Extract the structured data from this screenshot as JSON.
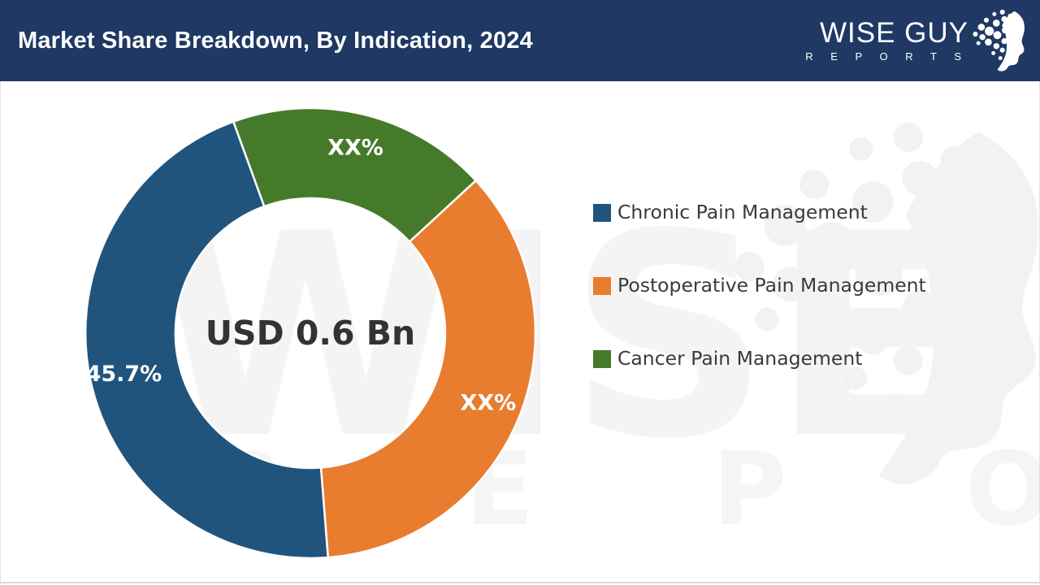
{
  "header": {
    "title": "Market Share Breakdown, By Indication, 2024",
    "background_color": "#1f3864",
    "logo": {
      "line1": "WISE GUY",
      "line2": "R E P O R T S"
    }
  },
  "chart_data": {
    "type": "pie",
    "subtype": "donut",
    "title": "Market Share Breakdown, By Indication, 2024",
    "categories": [
      "Chronic Pain Management",
      "Postoperative Pain Management",
      "Cancer Pain Management"
    ],
    "values": [
      45.7,
      35.6,
      18.7
    ],
    "value_labels": [
      "45.7%",
      "XX%",
      "XX%"
    ],
    "colors": [
      "#20547D",
      "#E87D2F",
      "#467A2B"
    ],
    "center_label": "USD 0.6 Bn",
    "start_angle": 110,
    "direction": "counterclockwise",
    "inner_radius_ratio": 0.6,
    "legend_position": "right",
    "slice_border_color": "#ffffff",
    "label_color": "#ffffff"
  },
  "watermark": {
    "line1": "WISE GUY",
    "line2": "R E P O"
  }
}
